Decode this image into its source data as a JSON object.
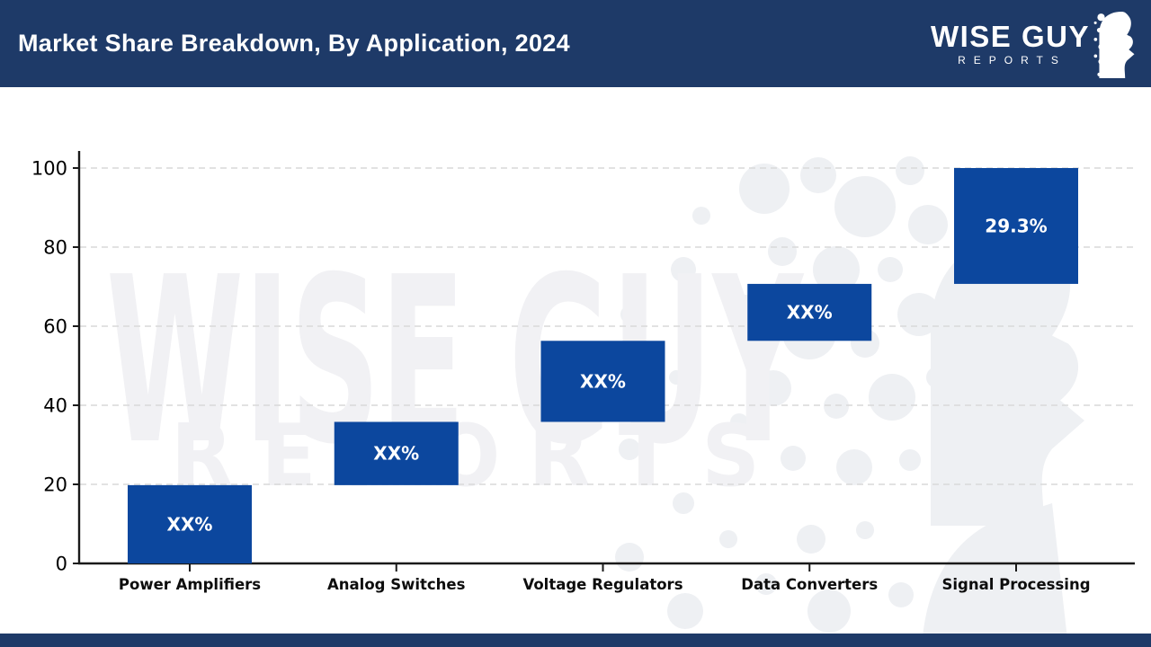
{
  "header": {
    "title": "Market Share Breakdown, By Application, 2024",
    "logo": {
      "line1": "WISE GUY",
      "line2": "REPORTS"
    }
  },
  "watermark": {
    "line1": "WISE GUY",
    "line2": "R E P O R T S"
  },
  "chart_data": {
    "type": "bar",
    "subtype": "waterfall-floating-bars",
    "title": "Market Share Breakdown, By Application, 2024",
    "categories": [
      "Power Amplifiers",
      "Analog Switches",
      "Voltage Regulators",
      "Data Converters",
      "Signal Processing"
    ],
    "bars": [
      {
        "category": "Power Amplifiers",
        "base": 0,
        "top": 19.8,
        "label": "XX%"
      },
      {
        "category": "Analog Switches",
        "base": 19.8,
        "top": 35.8,
        "label": "XX%"
      },
      {
        "category": "Voltage Regulators",
        "base": 35.8,
        "top": 56.3,
        "label": "XX%"
      },
      {
        "category": "Data Converters",
        "base": 56.3,
        "top": 70.7,
        "label": "XX%"
      },
      {
        "category": "Signal Processing",
        "base": 70.7,
        "top": 100.0,
        "label": "29.3%"
      }
    ],
    "yticks": [
      0,
      20,
      40,
      60,
      80,
      100
    ],
    "ylim": [
      0,
      104
    ],
    "xlabel": "",
    "ylabel": "",
    "grid": "horizontal-dashed",
    "legend": "none",
    "colors": {
      "bar": "#0c479e",
      "bar_label": "#ffffff",
      "grid": "#d9d9d9",
      "axis": "#1a1a1a",
      "tick_label": "#000000",
      "category_label": "#0d0d0d",
      "header_bg": "#1e3a68",
      "watermark": "#f1f1f4"
    }
  }
}
